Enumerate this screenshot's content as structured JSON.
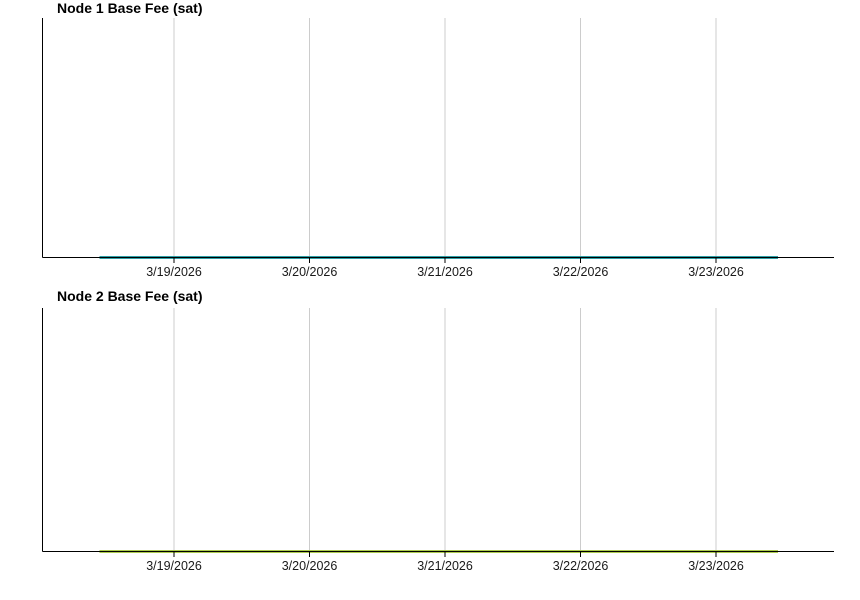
{
  "page": {
    "background": "#ffffff"
  },
  "charts": [
    {
      "title": "Node 1 Base Fee (sat)",
      "line_color": "#2E9FA6",
      "axis_color": "#000000",
      "gridline_color": "#cccccc",
      "label_color": "#1a1a1a",
      "x_tick_labels": [
        "3/19/2026",
        "3/20/2026",
        "3/21/2026",
        "3/22/2026",
        "3/23/2026"
      ]
    },
    {
      "title": "Node 2 Base Fee (sat)",
      "line_color": "#ADCB4E",
      "axis_color": "#000000",
      "gridline_color": "#cccccc",
      "label_color": "#1a1a1a",
      "x_tick_labels": [
        "3/19/2026",
        "3/20/2026",
        "3/21/2026",
        "3/22/2026",
        "3/23/2026"
      ]
    }
  ],
  "chart_data": [
    {
      "type": "line",
      "title": "Node 1 Base Fee (sat)",
      "xlabel": "",
      "ylabel": "",
      "x": [
        "3/18/2026 (line start, ~midday)",
        "3/19/2026",
        "3/20/2026",
        "3/21/2026",
        "3/22/2026",
        "3/23/2026",
        "3/23/2026 (line end, ~midday)"
      ],
      "x_tick_labels": [
        "3/19/2026",
        "3/20/2026",
        "3/21/2026",
        "3/22/2026",
        "3/23/2026"
      ],
      "series": [
        {
          "name": "Node 1 base fee",
          "values": [
            0,
            0,
            0,
            0,
            0,
            0,
            0
          ]
        }
      ],
      "y_axis_tick_labels": "none visible",
      "annotation": "flat constant line lying on the x-axis baseline",
      "grid": "vertical gridlines only",
      "legend": "none",
      "line_color": "#2E9FA6"
    },
    {
      "type": "line",
      "title": "Node 2 Base Fee (sat)",
      "xlabel": "",
      "ylabel": "",
      "x": [
        "3/18/2026 (line start, ~midday)",
        "3/19/2026",
        "3/20/2026",
        "3/21/2026",
        "3/22/2026",
        "3/23/2026",
        "3/23/2026 (line end, ~midday)"
      ],
      "x_tick_labels": [
        "3/19/2026",
        "3/20/2026",
        "3/21/2026",
        "3/22/2026",
        "3/23/2026"
      ],
      "series": [
        {
          "name": "Node 2 base fee",
          "values": [
            0,
            0,
            0,
            0,
            0,
            0,
            0
          ]
        }
      ],
      "y_axis_tick_labels": "none visible",
      "annotation": "flat constant line lying on the x-axis baseline",
      "grid": "vertical gridlines only",
      "legend": "none",
      "line_color": "#ADCB4E"
    }
  ]
}
